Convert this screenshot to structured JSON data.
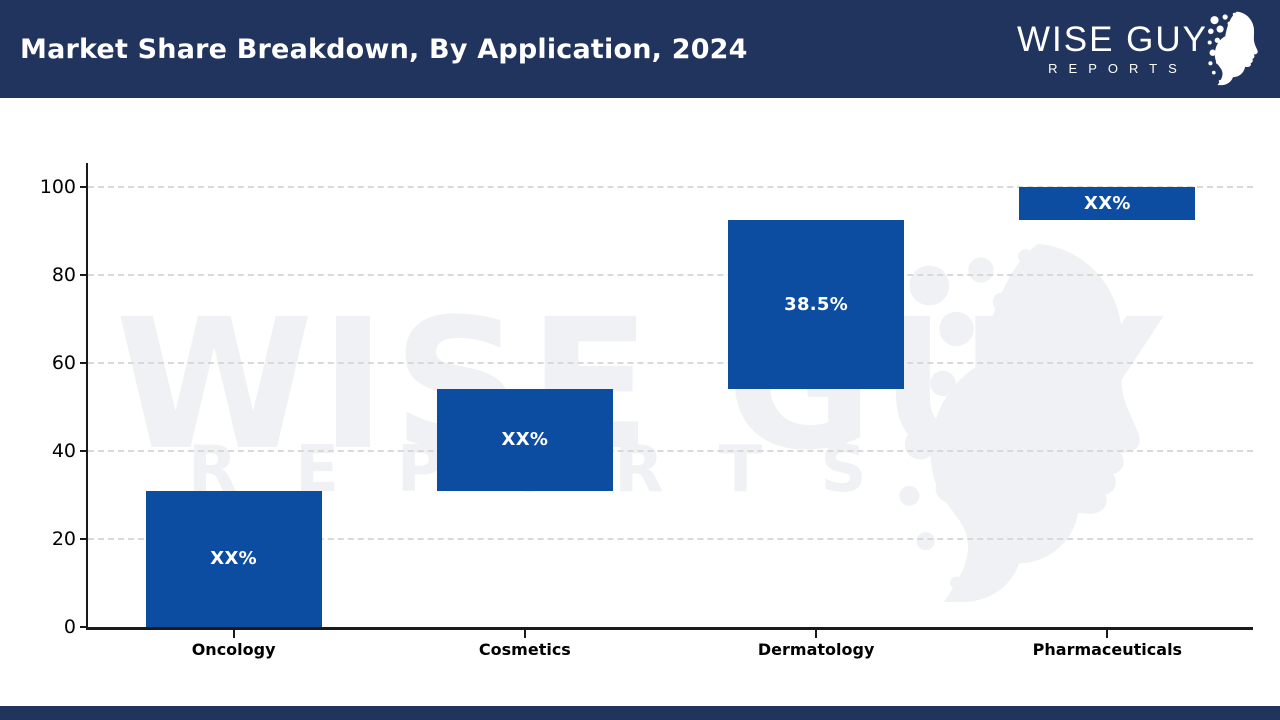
{
  "header": {
    "title": "Market Share Breakdown, By Application, 2024",
    "logo": {
      "line1": "WISE GUY",
      "line2": "REPORTS"
    }
  },
  "watermark": {
    "line1": "WISE GUY",
    "line2": "REPORTS"
  },
  "colors": {
    "header_navy": "#21345e",
    "footer_navy": "#21345e",
    "bar_blue": "#0c4da2",
    "gridline_gray": "#d9d9d9",
    "watermark_gray": "#f0f1f4",
    "bar_label_white": "#ffffff",
    "axis_black": "#1a1a1a"
  },
  "chart_data": {
    "type": "bar",
    "subtype": "waterfall",
    "title": "Market Share Breakdown, By Application, 2024",
    "categories": [
      "Oncology",
      "Cosmetics",
      "Dermatology",
      "Pharmaceuticals"
    ],
    "segments": [
      {
        "category": "Oncology",
        "start": 0,
        "end": 31,
        "label": "XX%"
      },
      {
        "category": "Cosmetics",
        "start": 31,
        "end": 54,
        "label": "XX%"
      },
      {
        "category": "Dermatology",
        "start": 54,
        "end": 92.5,
        "label": "38.5%",
        "value": 38.5
      },
      {
        "category": "Pharmaceuticals",
        "start": 92.5,
        "end": 100,
        "label": "XX%"
      }
    ],
    "masked_value_placeholder": "XX%",
    "yticks": [
      0,
      20,
      40,
      60,
      80,
      100
    ],
    "ylim": [
      0,
      105
    ],
    "xlabel": "",
    "ylabel": "",
    "grid": "horizontal-dashed",
    "legend": "none"
  }
}
